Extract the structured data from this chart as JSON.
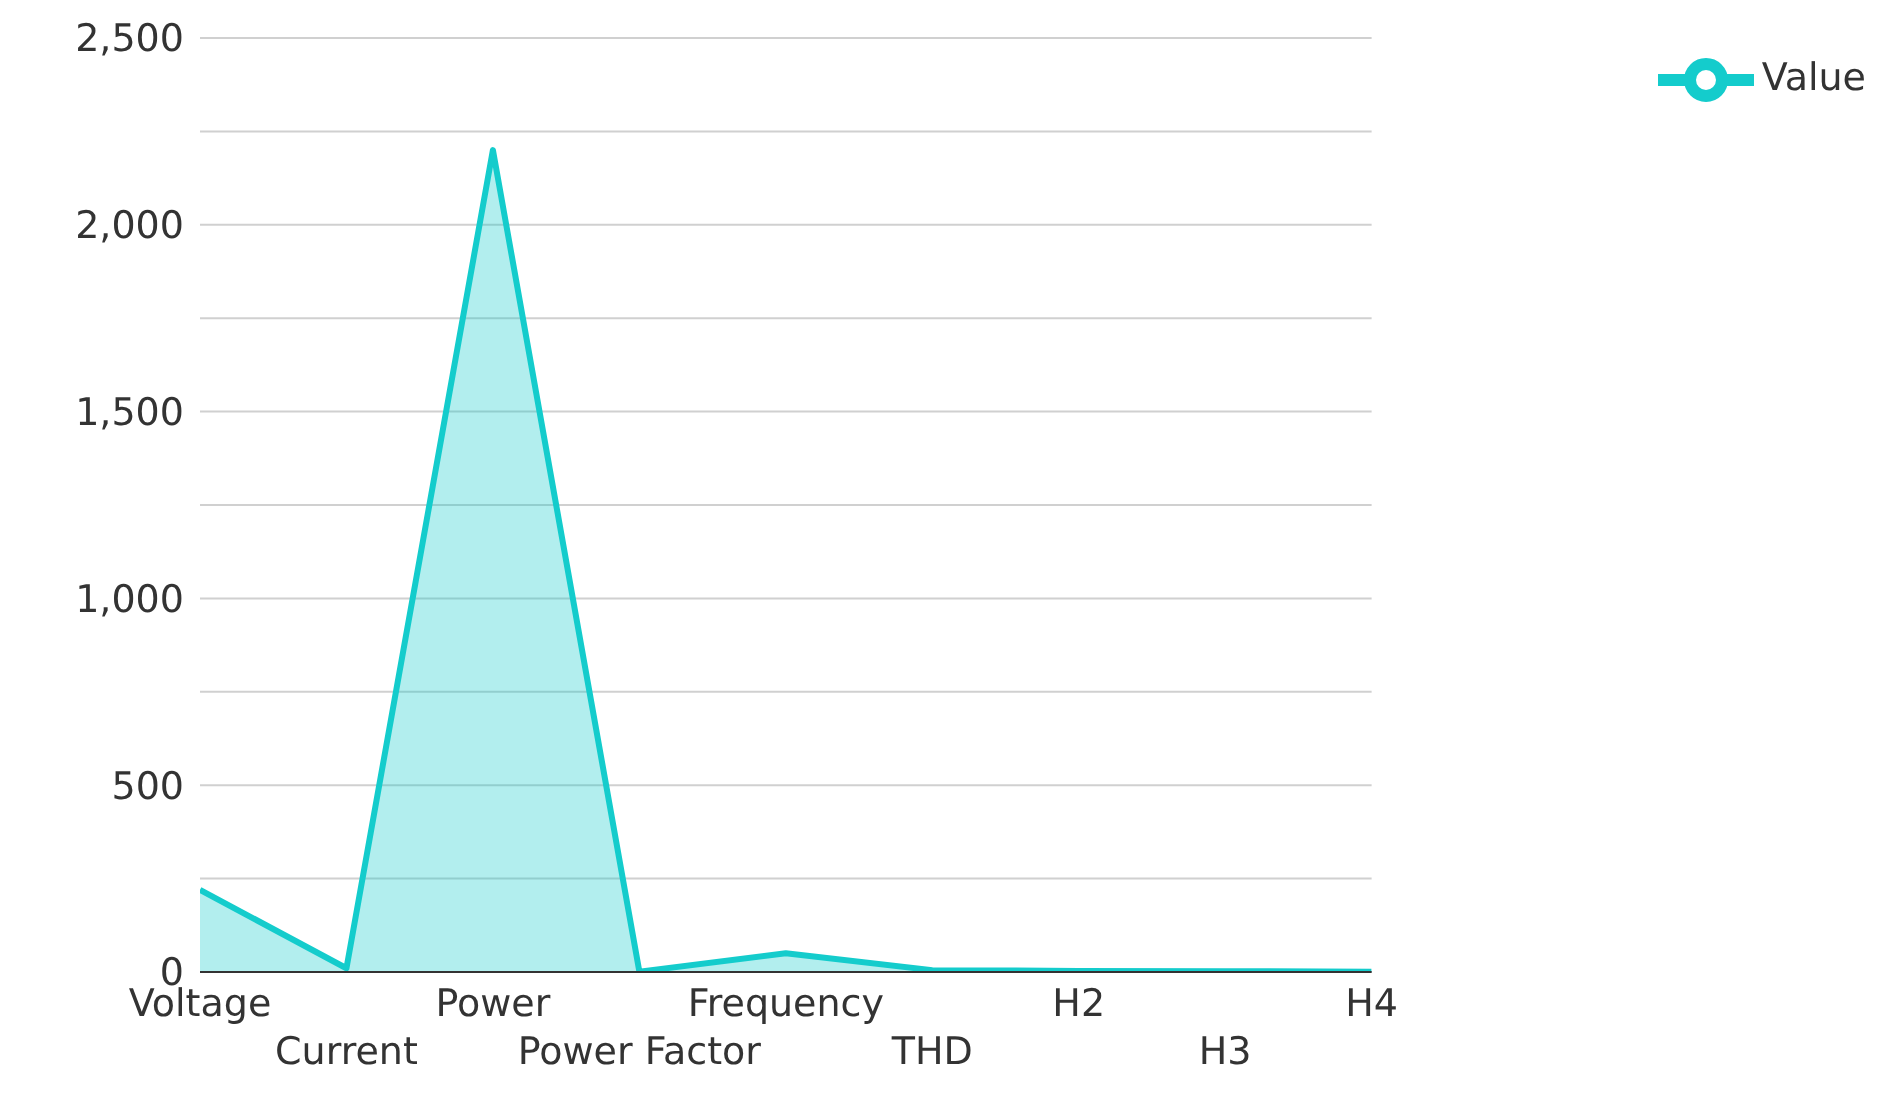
{
  "chart_data": {
    "type": "area",
    "categories": [
      "Voltage",
      "Current",
      "Power",
      "Power Factor",
      "Frequency",
      "THD",
      "H2",
      "H3",
      "H4"
    ],
    "series": [
      {
        "name": "Value",
        "color": "#14cccc",
        "values": [
          220,
          10,
          2200,
          1,
          50,
          5,
          3,
          2,
          1
        ]
      }
    ],
    "ylim": [
      0,
      2500
    ],
    "yticks": [
      0,
      {
        "value": 250,
        "label": null
      },
      500,
      {
        "value": 750,
        "label": null
      },
      {
        "value": 1000,
        "label": "1,000"
      },
      {
        "value": 1250,
        "label": null
      },
      {
        "value": 1500,
        "label": "1,500"
      },
      {
        "value": 1750,
        "label": null
      },
      {
        "value": 2000,
        "label": "2,000"
      },
      {
        "value": 2250,
        "label": null
      },
      {
        "value": 2500,
        "label": "2,500"
      }
    ],
    "grid": "y",
    "legend": "top right",
    "marker": "none",
    "line_style": "solid"
  }
}
